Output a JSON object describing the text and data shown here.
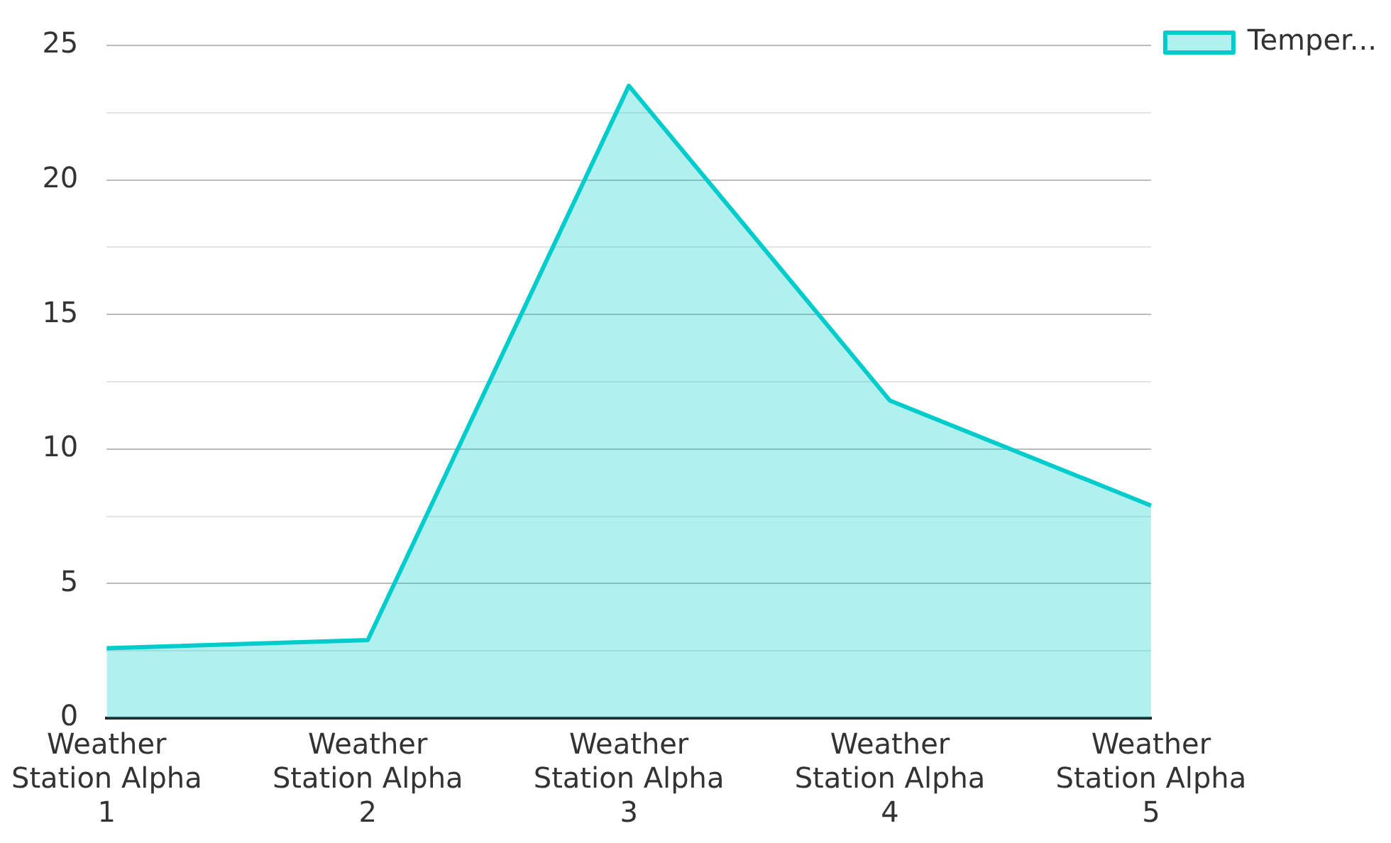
{
  "chart_data": {
    "type": "area",
    "categories": [
      "Weather Station Alpha 1",
      "Weather Station Alpha 2",
      "Weather Station Alpha 3",
      "Weather Station Alpha 4",
      "Weather Station Alpha 5"
    ],
    "series": [
      {
        "name": "Temper...",
        "color": "#00cccc",
        "values": [
          2.6,
          2.9,
          23.5,
          11.8,
          7.9
        ]
      }
    ],
    "ylim": [
      0,
      25
    ],
    "yticks": [
      0,
      {
        "value": 2.5,
        "label": null
      },
      5,
      {
        "value": 7.5,
        "label": null
      },
      10,
      {
        "value": 12.5,
        "label": null
      },
      15,
      {
        "value": 17.5,
        "label": null
      },
      20,
      {
        "value": 22.5,
        "label": null
      },
      25
    ],
    "grid": "y",
    "legend": "top right",
    "marker": "none",
    "line_style": "solid"
  }
}
